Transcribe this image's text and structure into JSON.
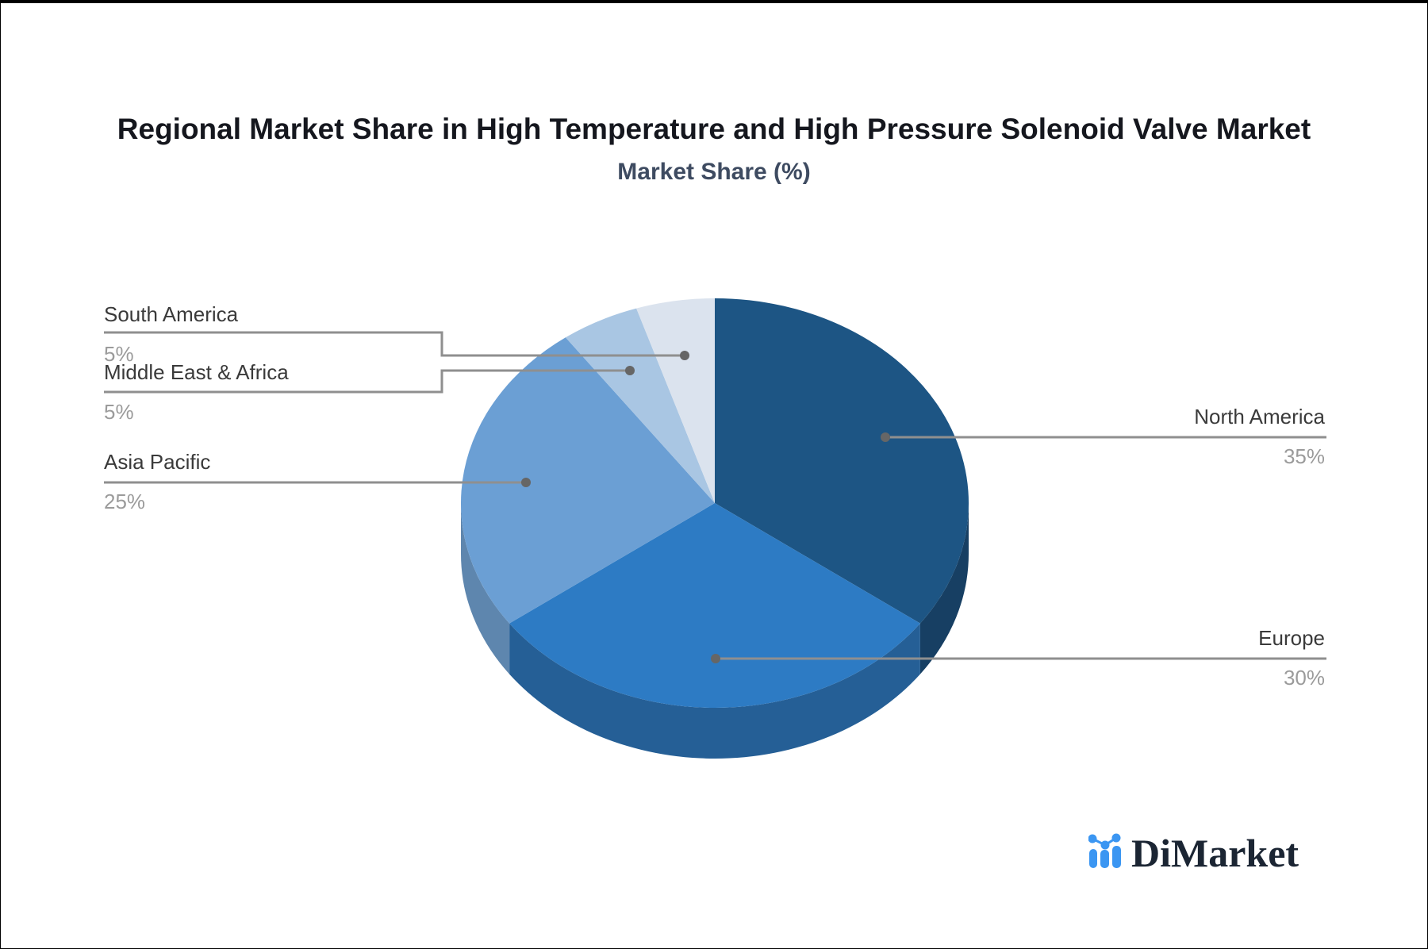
{
  "chart_data": {
    "type": "pie",
    "style": "3d",
    "title": "Regional Market Share in High Temperature and High Pressure Solenoid Valve Market",
    "subtitle": "Market Share (%)",
    "unit": "%",
    "direction": "clockwise",
    "start_angle_deg": 0,
    "legend_position": "none",
    "labels_show_percent": true,
    "slices": [
      {
        "label": "North America",
        "value": 35,
        "pct_label": "35%",
        "color": "#1d5584",
        "side_color": "#173f63",
        "callout_side": "right"
      },
      {
        "label": "Europe",
        "value": 30,
        "pct_label": "30%",
        "color": "#2d7bc4",
        "side_color": "#255f96",
        "callout_side": "right"
      },
      {
        "label": "Asia Pacific",
        "value": 25,
        "pct_label": "25%",
        "color": "#6b9fd4",
        "side_color": "#5e86ae",
        "callout_side": "left"
      },
      {
        "label": "Middle East & Africa",
        "value": 5,
        "pct_label": "5%",
        "color": "#a9c6e3",
        "side_color": "#8aa9c8",
        "callout_side": "left"
      },
      {
        "label": "South America",
        "value": 5,
        "pct_label": "5%",
        "color": "#dbe3ee",
        "side_color": "#b8c3d4",
        "callout_side": "left"
      }
    ],
    "callout_line_color": "#8f8f8f",
    "callout_dot_color": "#666666",
    "label_color": "#3a3a3a",
    "percent_color": "#9b9b9b"
  },
  "branding": {
    "logo_text": "DiMarket",
    "logo_icon": "bar-chart-trend-icon",
    "icon_color": "#3b96f2",
    "text_color": "#1b2533"
  }
}
